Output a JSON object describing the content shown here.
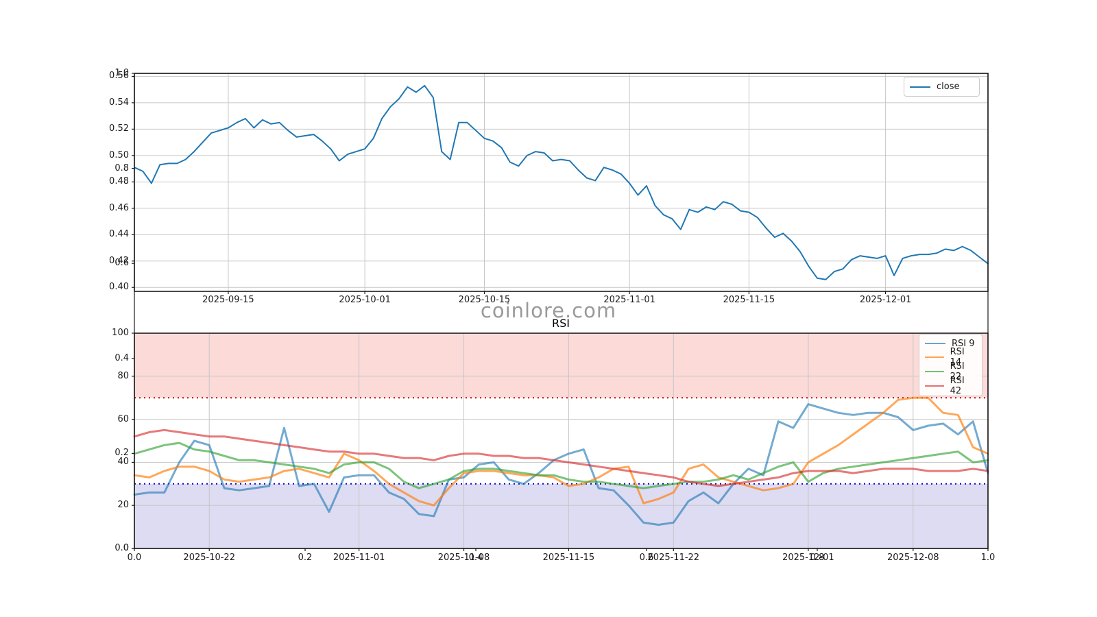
{
  "watermark": "coinlore.com",
  "price_chart": {
    "legend": [
      {
        "label": "close"
      }
    ],
    "y_tick_labels": [
      "0.40",
      "0.42",
      "0.44",
      "0.46",
      "0.48",
      "0.50",
      "0.52",
      "0.54",
      "0.56"
    ],
    "x_tick_labels": [
      "2025-09-15",
      "2025-10-01",
      "2025-10-15",
      "2025-11-01",
      "2025-11-15",
      "2025-12-01"
    ]
  },
  "rsi_chart": {
    "title": "RSI",
    "legend": [
      {
        "label": "RSI 9"
      },
      {
        "label": "RSI 14"
      },
      {
        "label": "RSI 22"
      },
      {
        "label": "RSI 42"
      }
    ],
    "y_tick_labels": [
      "0",
      "20",
      "40",
      "60",
      "80",
      "100"
    ],
    "x_tick_labels": [
      "2025-10-22",
      "2025-11-01",
      "2025-11-08",
      "2025-11-15",
      "2025-11-22",
      "2025-12-01",
      "2025-12-08"
    ],
    "overbought_level": 70,
    "oversold_level": 30
  },
  "overlay_axis": {
    "x_tick_labels": [
      "0.0",
      "0.2",
      "0.4",
      "0.6",
      "0.8",
      "1.0"
    ],
    "y_tick_labels": [
      "0.0",
      "0.2",
      "0.4",
      "0.6",
      "0.8",
      "1.0"
    ]
  },
  "colors": {
    "close_line": "#1f77b4",
    "rsi9_line": "#1f77b4",
    "rsi14_line": "#ff7f0e",
    "rsi22_line": "#2ca02c",
    "rsi42_line": "#d62728",
    "overbought_dotted": "#cc0000",
    "oversold_dotted": "#0000cc",
    "overbought_band": "#fbdad8",
    "oversold_band": "#dddcf2",
    "grid": "#c6c6c6",
    "watermark": "#9a9a9a"
  },
  "chart_data": [
    {
      "type": "line",
      "title": "",
      "x_start": "2025-09-04",
      "x_end": "2025-12-13",
      "freq": "daily",
      "ylim": [
        0.397,
        0.5623
      ],
      "y_ticks": [
        0.4,
        0.42,
        0.44,
        0.46,
        0.48,
        0.5,
        0.52,
        0.54,
        0.56
      ],
      "x_tick_dates": [
        "2025-09-15",
        "2025-10-01",
        "2025-10-15",
        "2025-11-01",
        "2025-11-15",
        "2025-12-01"
      ],
      "x_tick_day_indices": [
        11,
        27,
        41,
        58,
        72,
        88
      ],
      "grid": true,
      "legend_position": "upper right",
      "series": [
        {
          "name": "close",
          "color": "#1f77b4",
          "alpha": 1,
          "width": 2,
          "values": [
            0.491,
            0.488,
            0.479,
            0.493,
            0.494,
            0.494,
            0.497,
            0.503,
            0.51,
            0.517,
            0.519,
            0.521,
            0.525,
            0.528,
            0.521,
            0.527,
            0.524,
            0.525,
            0.519,
            0.514,
            0.515,
            0.516,
            0.511,
            0.505,
            0.496,
            0.501,
            0.503,
            0.505,
            0.513,
            0.528,
            0.537,
            0.543,
            0.552,
            0.548,
            0.553,
            0.544,
            0.503,
            0.497,
            0.525,
            0.525,
            0.519,
            0.513,
            0.511,
            0.506,
            0.495,
            0.492,
            0.5,
            0.503,
            0.502,
            0.496,
            0.497,
            0.496,
            0.489,
            0.483,
            0.481,
            0.491,
            0.489,
            0.486,
            0.479,
            0.47,
            0.477,
            0.462,
            0.455,
            0.452,
            0.444,
            0.459,
            0.457,
            0.461,
            0.459,
            0.465,
            0.463,
            0.458,
            0.457,
            0.453,
            0.445,
            0.438,
            0.441,
            0.435,
            0.427,
            0.416,
            0.407,
            0.406,
            0.412,
            0.414,
            0.421,
            0.424,
            0.423,
            0.422,
            0.424,
            0.409,
            0.422,
            0.424,
            0.425,
            0.425,
            0.426,
            0.429,
            0.428,
            0.431,
            0.428,
            0.423,
            0.418
          ]
        }
      ]
    },
    {
      "type": "line",
      "title": "RSI",
      "x_start": "2025-10-17",
      "x_end": "2025-12-13",
      "freq": "daily",
      "ylim": [
        0,
        100
      ],
      "y_ticks": [
        0,
        20,
        40,
        60,
        80,
        100
      ],
      "x_tick_dates": [
        "2025-10-22",
        "2025-11-01",
        "2025-11-08",
        "2025-11-15",
        "2025-11-22",
        "2025-12-01",
        "2025-12-08"
      ],
      "x_tick_day_indices": [
        5,
        15,
        22,
        29,
        36,
        45,
        52
      ],
      "overbought_level": 70,
      "oversold_level": 30,
      "grid": true,
      "legend_position": "upper right",
      "series": [
        {
          "name": "RSI 9",
          "color": "#1f77b4",
          "alpha": 0.62,
          "width": 3,
          "values": [
            25,
            26,
            26,
            40,
            50,
            48,
            28,
            27,
            28,
            29,
            56,
            29,
            30,
            17,
            33,
            34,
            34,
            26,
            23,
            16,
            15,
            32,
            33,
            39,
            40,
            32,
            30,
            35,
            41,
            44,
            46,
            28,
            27,
            20,
            12,
            11,
            12,
            22,
            26,
            21,
            30,
            37,
            34,
            59,
            56,
            67,
            65,
            63,
            62,
            63,
            63,
            61,
            55,
            57,
            58,
            53,
            59,
            35
          ]
        },
        {
          "name": "RSI 14",
          "color": "#ff7f0e",
          "alpha": 0.68,
          "width": 3,
          "values": [
            34,
            33,
            36,
            38,
            38,
            36,
            32,
            31,
            32,
            33,
            36,
            37,
            35,
            33,
            44,
            41,
            36,
            30,
            26,
            22,
            20,
            28,
            35,
            36,
            36,
            35,
            34,
            34,
            33,
            29,
            30,
            33,
            37,
            38,
            21,
            23,
            26,
            37,
            39,
            33,
            31,
            29,
            27,
            28,
            30,
            40,
            44,
            48,
            53,
            58,
            63,
            69,
            70,
            70,
            63,
            62,
            47,
            44
          ]
        },
        {
          "name": "RSI 22",
          "color": "#2ca02c",
          "alpha": 0.62,
          "width": 3,
          "values": [
            44,
            46,
            48,
            49,
            46,
            45,
            43,
            41,
            41,
            40,
            39,
            38,
            37,
            35,
            39,
            40,
            40,
            37,
            31,
            28,
            30,
            32,
            36,
            37,
            37,
            36,
            35,
            34,
            34,
            32,
            31,
            31,
            30,
            29,
            28,
            29,
            30,
            31,
            31,
            32,
            34,
            32,
            35,
            38,
            40,
            31,
            35,
            37,
            38,
            39,
            40,
            41,
            42,
            43,
            44,
            45,
            40,
            41
          ]
        },
        {
          "name": "RSI 42",
          "color": "#d62728",
          "alpha": 0.62,
          "width": 3,
          "values": [
            52,
            54,
            55,
            54,
            53,
            52,
            52,
            51,
            50,
            49,
            48,
            47,
            46,
            45,
            45,
            44,
            44,
            43,
            42,
            42,
            41,
            43,
            44,
            44,
            43,
            43,
            42,
            42,
            41,
            40,
            39,
            38,
            37,
            36,
            35,
            34,
            33,
            31,
            30,
            29,
            30,
            31,
            32,
            33,
            35,
            36,
            36,
            36,
            35,
            36,
            37,
            37,
            37,
            36,
            36,
            36,
            37,
            36
          ]
        }
      ]
    }
  ]
}
